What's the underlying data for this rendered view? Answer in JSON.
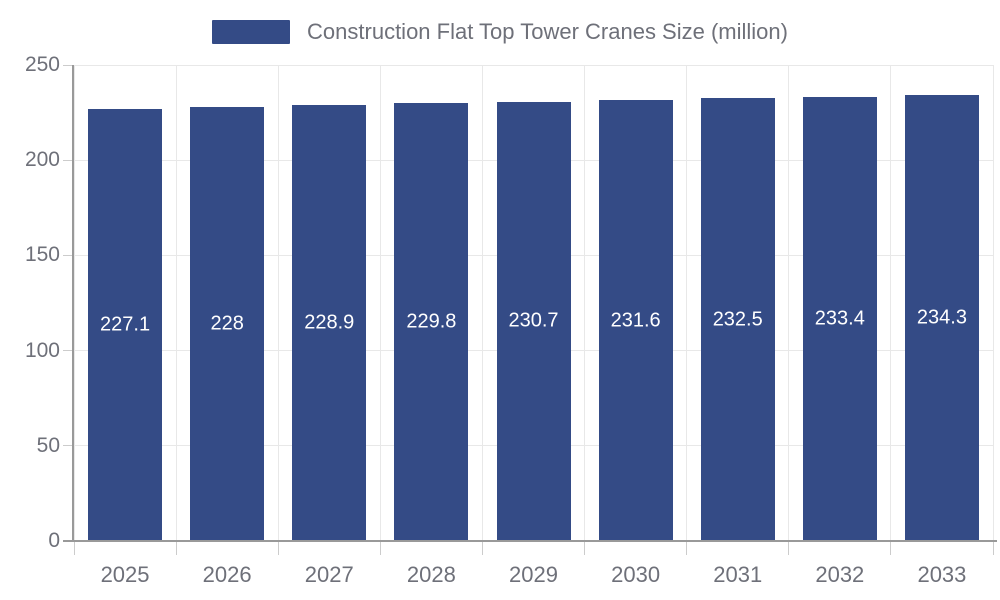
{
  "legend": {
    "label": "Construction Flat Top Tower Cranes Size (million)"
  },
  "chart_data": {
    "type": "bar",
    "title": "Construction Flat Top Tower Cranes Size (million)",
    "categories": [
      "2025",
      "2026",
      "2027",
      "2028",
      "2029",
      "2030",
      "2031",
      "2032",
      "2033"
    ],
    "series": [
      {
        "name": "Construction Flat Top Tower Cranes Size (million)",
        "values": [
          227.1,
          228,
          228.9,
          229.8,
          230.7,
          231.6,
          232.5,
          233.4,
          234.3
        ]
      }
    ],
    "value_labels": [
      "227.1",
      "228",
      "228.9",
      "229.8",
      "230.7",
      "231.6",
      "232.5",
      "233.4",
      "234.3"
    ],
    "xlabel": "",
    "ylabel": "",
    "ylim": [
      0,
      250
    ],
    "yticks": [
      0,
      50,
      100,
      150,
      200,
      250
    ],
    "grid": true,
    "legend_position": "top",
    "colors": {
      "bar": "#344b86",
      "bar_label_text": "#ffffff",
      "axis_text": "#6e7079",
      "axis_line": "#999999",
      "tick_line": "#cccccc",
      "grid_line": "#e8e8e8"
    }
  }
}
